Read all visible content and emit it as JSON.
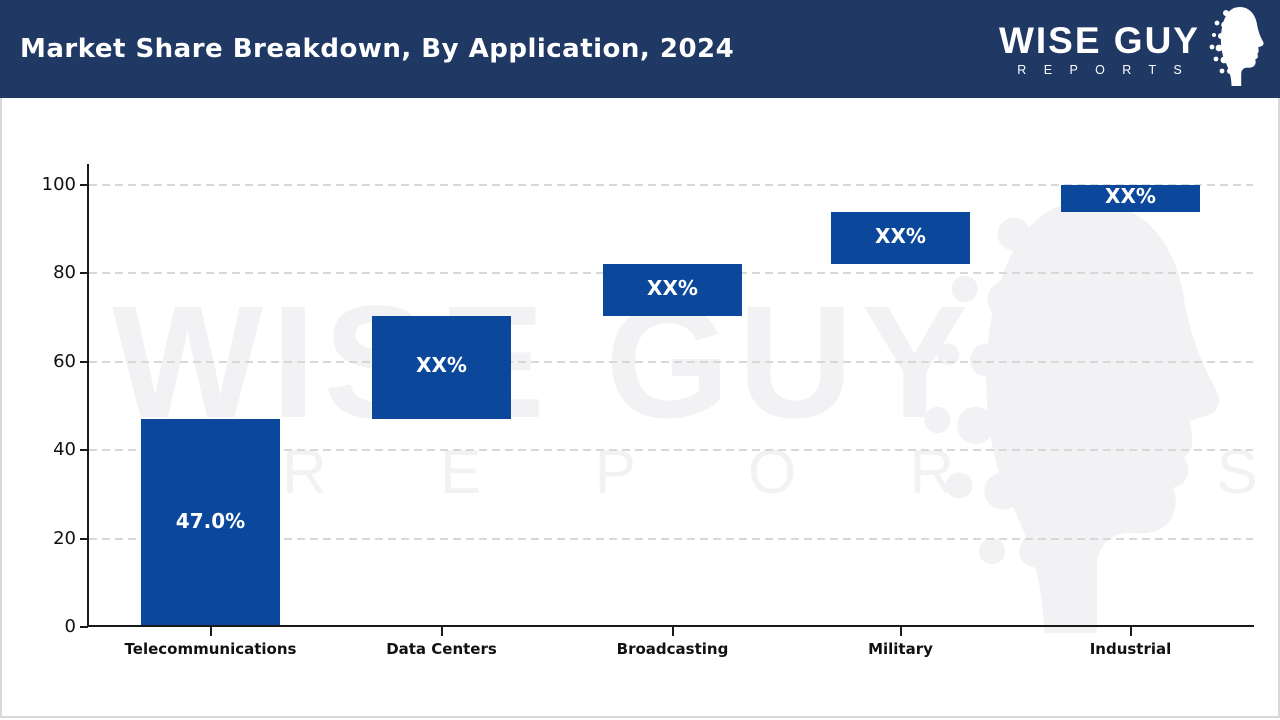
{
  "header": {
    "title": "Market Share Breakdown, By Application, 2024",
    "bg_color": "#1f3864",
    "logo": {
      "line1": "WISE GUY",
      "line2": "R E P O R T S"
    }
  },
  "watermark": {
    "line1": "WISE GUY",
    "line2": "R E P O R T S"
  },
  "chart_data": {
    "type": "bar",
    "subtype": "waterfall",
    "title": "Market Share Breakdown, By Application, 2024",
    "categories": [
      "Telecommunications",
      "Data Centers",
      "Broadcasting",
      "Military",
      "Industrial"
    ],
    "segments": [
      {
        "category": "Telecommunications",
        "start": 0,
        "end": 47.0,
        "label": "47.0%"
      },
      {
        "category": "Data Centers",
        "start": 47.0,
        "end": 70.3,
        "label": "XX%"
      },
      {
        "category": "Broadcasting",
        "start": 70.3,
        "end": 82.0,
        "label": "XX%"
      },
      {
        "category": "Military",
        "start": 82.0,
        "end": 93.7,
        "label": "XX%"
      },
      {
        "category": "Industrial",
        "start": 93.7,
        "end": 100.0,
        "label": "XX%"
      }
    ],
    "yticks": [
      0,
      20,
      40,
      60,
      80,
      100
    ],
    "ylim": [
      0,
      104.6
    ],
    "xlabel": "",
    "ylabel": "",
    "grid": "horizontal-dashed",
    "legend": "none",
    "bar_color": "#0b489c",
    "label_color": "#ffffff"
  }
}
